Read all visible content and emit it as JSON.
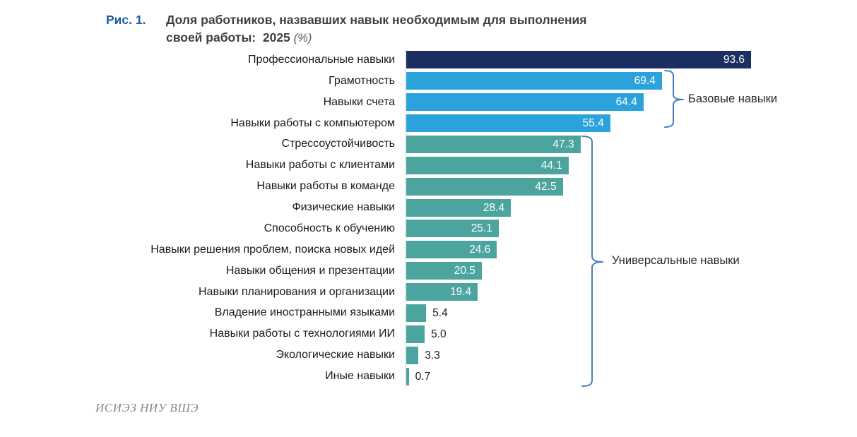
{
  "title": {
    "figure_label": "Рис. 1.",
    "line1": "Доля работников, назвавших навык необходимым для выполнения",
    "line2": "своей работы:  2025",
    "unit_suffix": "(%)"
  },
  "footer": {
    "source": "ИСИЭЗ НИУ ВШЭ"
  },
  "colors": {
    "navy": "#1c2f63",
    "blue": "#2ba2db",
    "teal": "#4ba49e",
    "bracket": "#4a7ebf",
    "figure_label_blue": "#1e5aa8"
  },
  "chart_data": {
    "type": "bar",
    "orientation": "horizontal",
    "title": "Доля работников, назвавших навык необходимым для выполнения своей работы: 2025 (%)",
    "value_max": 93.6,
    "xlim": [
      0,
      100
    ],
    "categories": [
      "Профессиональные навыки",
      "Грамотность",
      "Навыки счета",
      "Навыки работы с компьютером",
      "Стрессоустойчивость",
      "Навыки работы с клиентами",
      "Навыки работы в команде",
      "Физические навыки",
      "Способность к обучению",
      "Навыки решения проблем, поиска новых идей",
      "Навыки общения и презентации",
      "Навыки планирования и организации",
      "Владение иностранными языками",
      "Навыки работы с технологиями ИИ",
      "Экологические навыки",
      "Иные навыки"
    ],
    "values": [
      93.6,
      69.4,
      64.4,
      55.4,
      47.3,
      44.1,
      42.5,
      28.4,
      25.1,
      24.6,
      20.5,
      19.4,
      5.4,
      5.0,
      3.3,
      0.7
    ],
    "value_labels": [
      "93.6",
      "69.4",
      "64.4",
      "55.4",
      "47.3",
      "44.1",
      "42.5",
      "28.4",
      "25.1",
      "24.6",
      "20.5",
      "19.4",
      "5.4",
      "5.0",
      "3.3",
      "0.7"
    ],
    "bar_color_keys": [
      "navy",
      "blue",
      "blue",
      "blue",
      "teal",
      "teal",
      "teal",
      "teal",
      "teal",
      "teal",
      "teal",
      "teal",
      "teal",
      "teal",
      "teal",
      "teal"
    ],
    "groups": [
      {
        "label": "Базовые навыки",
        "start_index": 1,
        "end_index": 3
      },
      {
        "label": "Универсальные навыки",
        "start_index": 4,
        "end_index": 15
      }
    ]
  }
}
